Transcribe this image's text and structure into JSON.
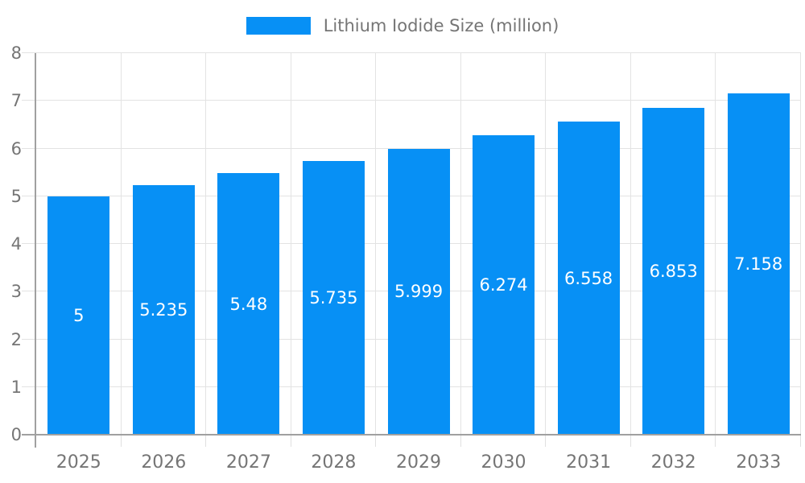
{
  "legend": {
    "label": "Lithium Iodide Size (million)"
  },
  "chart_data": {
    "type": "bar",
    "title": "Lithium Iodide Size (million)",
    "categories": [
      "2025",
      "2026",
      "2027",
      "2028",
      "2029",
      "2030",
      "2031",
      "2032",
      "2033"
    ],
    "values": [
      5,
      5.235,
      5.48,
      5.735,
      5.999,
      6.274,
      6.558,
      6.853,
      7.158
    ],
    "bar_labels": [
      "5",
      "5.235",
      "5.48",
      "5.735",
      "5.999",
      "6.274",
      "6.558",
      "6.853",
      "7.158"
    ],
    "xlabel": "",
    "ylabel": "",
    "ylim": [
      0,
      8
    ],
    "y_ticks": [
      0,
      1,
      2,
      3,
      4,
      5,
      6,
      7,
      8
    ],
    "grid": true,
    "legend_position": "top",
    "series_name": "Lithium Iodide Size (million)"
  },
  "colors": {
    "bar": "#0790f5",
    "axis_line": "#a0a0a0",
    "gridline": "#e3e3e3",
    "minor_tick": "#e0e0e0",
    "label_text": "#757575",
    "bar_label_text": "#ffffff",
    "background": "#ffffff"
  }
}
